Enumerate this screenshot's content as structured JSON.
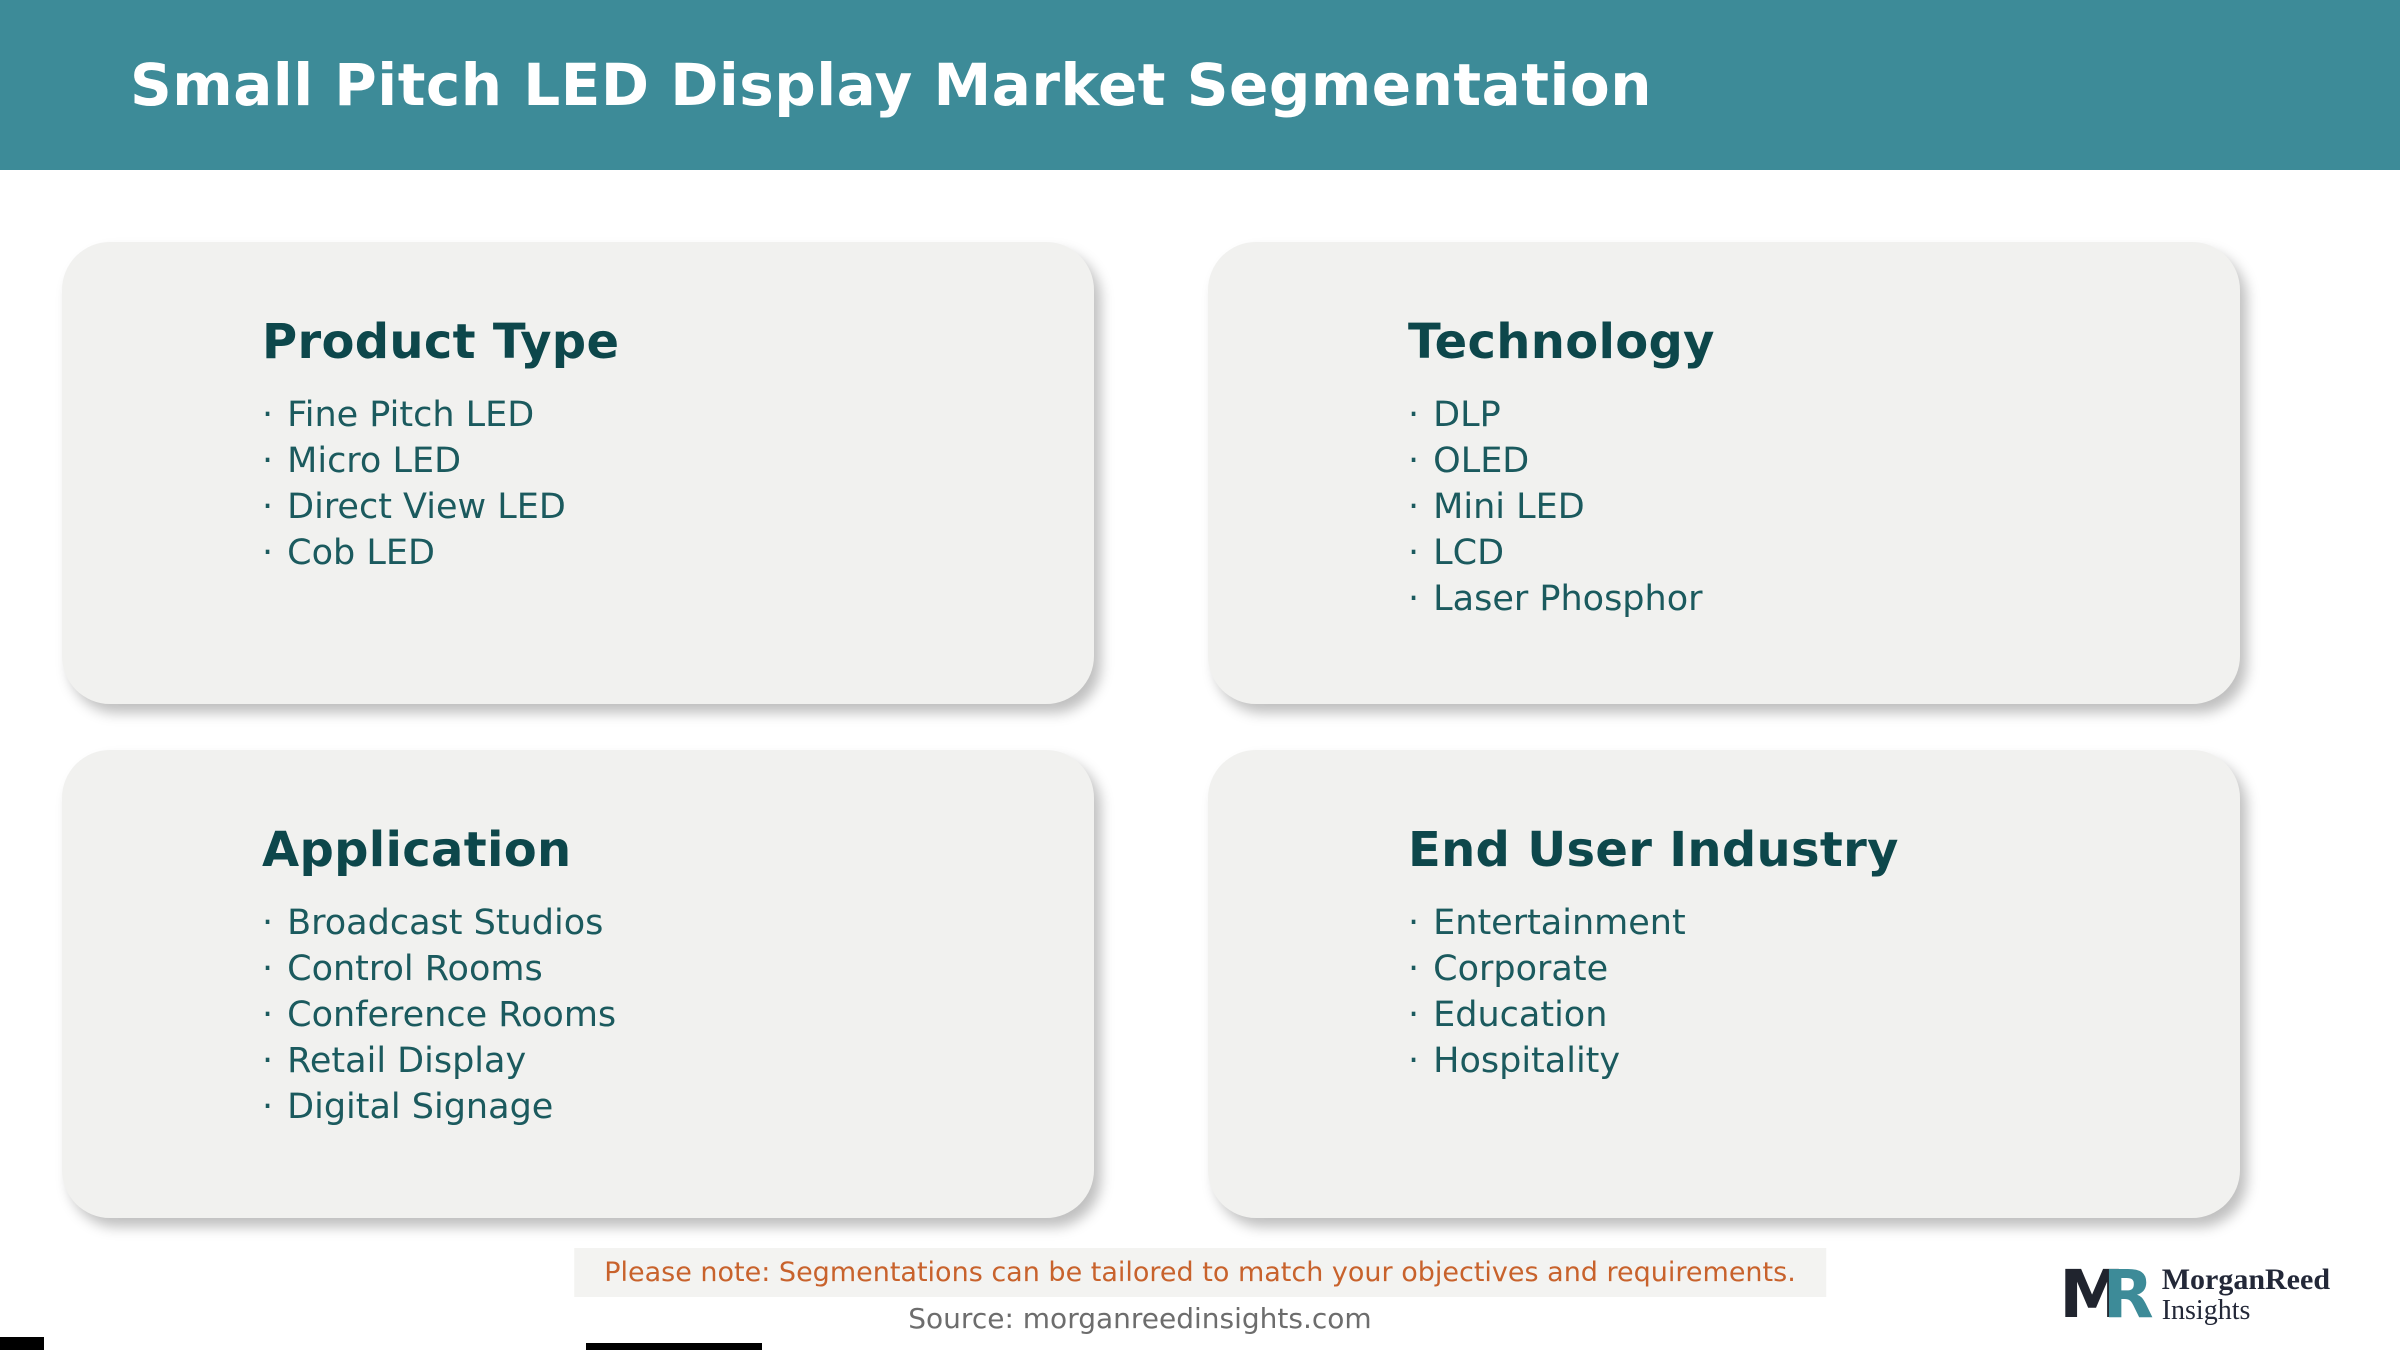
{
  "header": {
    "title": "Small Pitch LED Display Market Segmentation"
  },
  "cards": [
    {
      "title": "Product Type",
      "items": [
        "Fine Pitch LED",
        "Micro LED",
        "Direct View LED",
        "Cob LED"
      ]
    },
    {
      "title": "Technology",
      "items": [
        "DLP",
        "OLED",
        "Mini LED",
        "LCD",
        "Laser Phosphor"
      ]
    },
    {
      "title": "Application",
      "items": [
        "Broadcast Studios",
        "Control Rooms",
        "Conference Rooms",
        "Retail Display",
        "Digital Signage"
      ]
    },
    {
      "title": "End User Industry",
      "items": [
        "Entertainment",
        "Corporate",
        "Education",
        "Hospitality"
      ]
    }
  ],
  "note": {
    "text": "Please note: Segmentations can be tailored to match your objectives and requirements."
  },
  "source": {
    "text": "Source: morganreedinsights.com"
  },
  "logo": {
    "monogram_m": "M",
    "monogram_r": "R",
    "line1": "MorganReed",
    "line2": "Insights"
  },
  "colors": {
    "header_teal": "#3d8b98",
    "card_background": "#f1f1ef",
    "card_title_teal": "#0d474b",
    "card_item_teal": "#1b5a5e",
    "note_orange": "#c8622c",
    "source_gray": "#6d6d6d"
  }
}
